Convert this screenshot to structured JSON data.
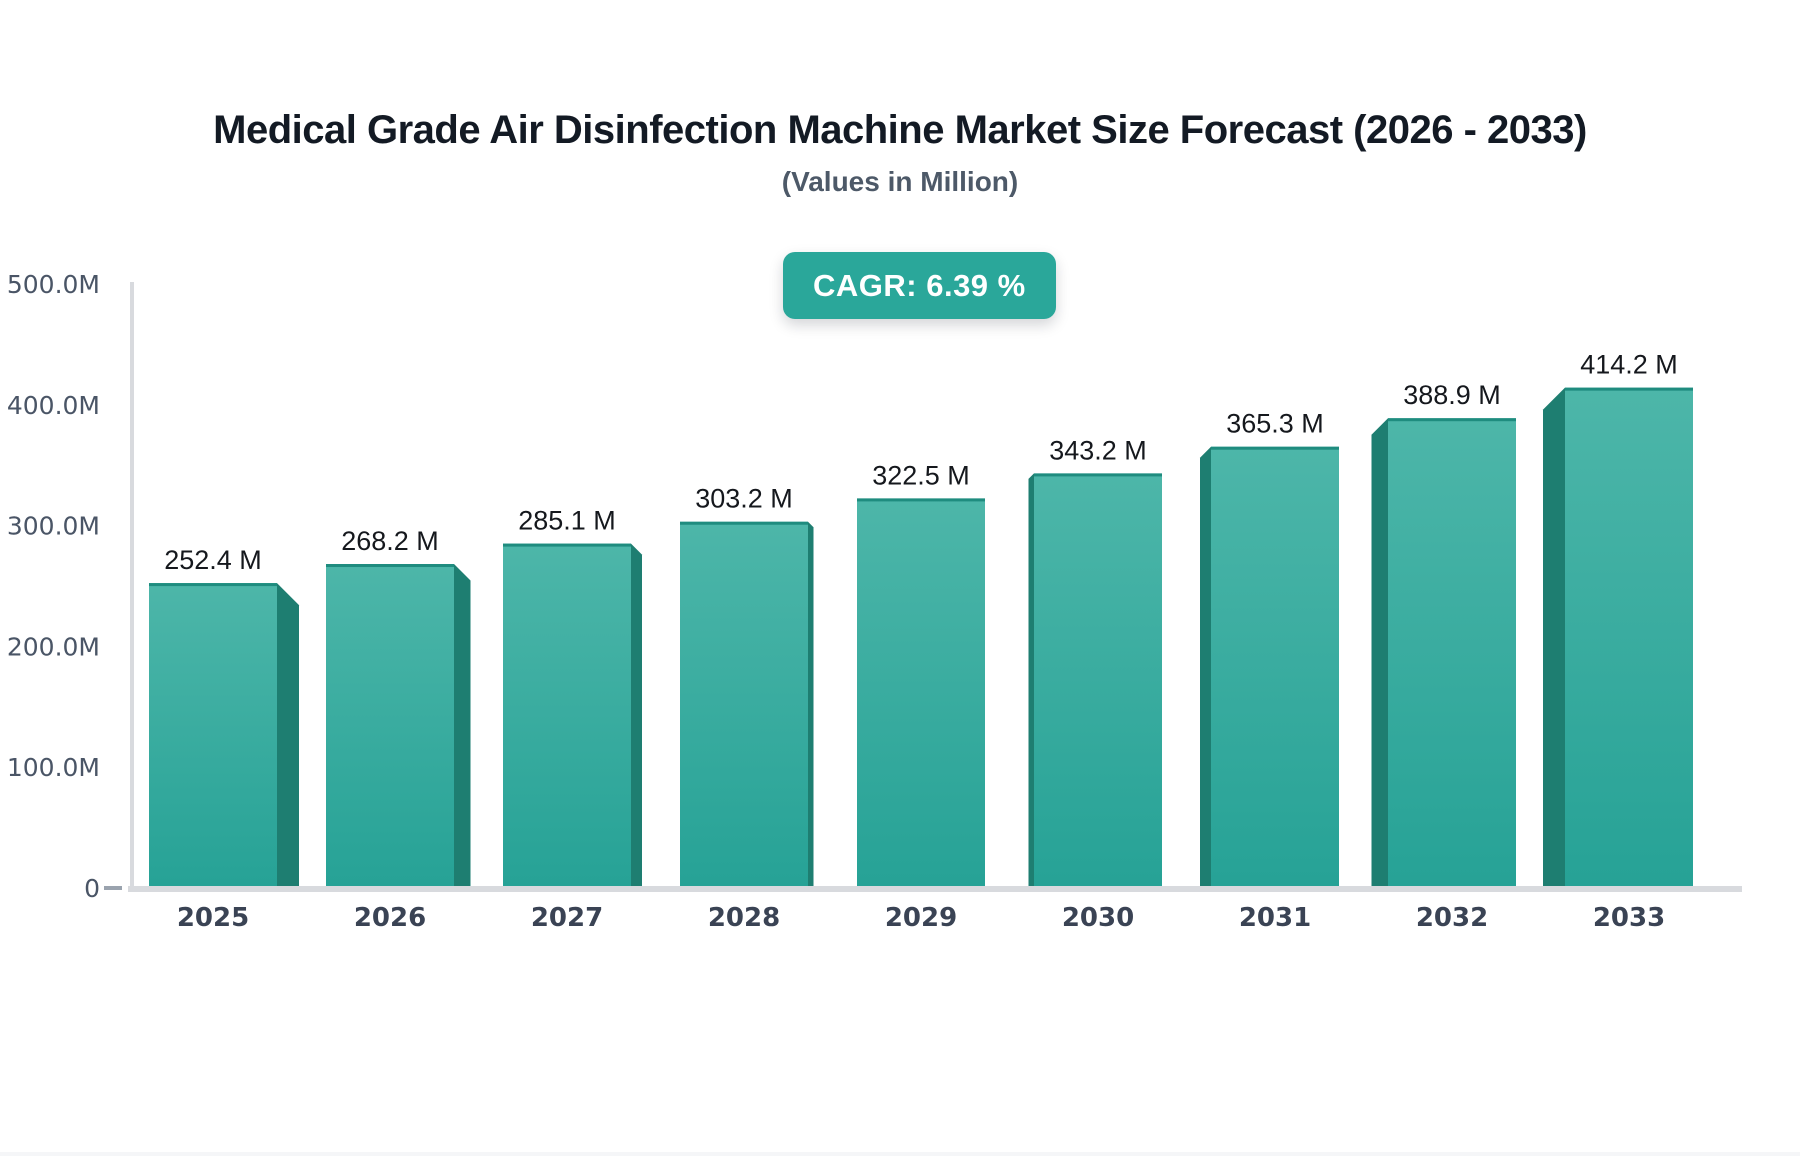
{
  "header": {
    "title": "Medical Grade Air Disinfection Machine Market Size Forecast (2026 - 2033)",
    "subtitle": "(Values in Million)",
    "cagr_badge": "CAGR: 6.39 %"
  },
  "chart_data": {
    "type": "bar",
    "title": "Medical Grade Air Disinfection Machine Market Size Forecast (2026 - 2033)",
    "subtitle": "(Values in Million)",
    "cagr": "6.39 %",
    "unit": "Million",
    "categories": [
      "2025",
      "2026",
      "2027",
      "2028",
      "2029",
      "2030",
      "2031",
      "2032",
      "2033"
    ],
    "values": [
      252.4,
      268.2,
      285.1,
      303.2,
      322.5,
      343.2,
      365.3,
      388.9,
      414.2
    ],
    "bar_labels": [
      "252.4 M",
      "268.2 M",
      "285.1 M",
      "303.2 M",
      "322.5 M",
      "343.2 M",
      "365.3 M",
      "388.9 M",
      "414.2 M"
    ],
    "yticks": [
      500,
      400,
      300,
      200,
      100,
      0
    ],
    "ytick_labels": [
      "500.0M",
      "400.0M",
      "300.0M",
      "200.0M",
      "100.0M",
      "0"
    ],
    "ylim": [
      0,
      500
    ],
    "xlabel": "",
    "ylabel": "",
    "grid": false,
    "legend_position": "none",
    "colors": {
      "bar_top": "#4db6a9",
      "bar_bottom": "#26a296",
      "bar_side": "#1e7e71",
      "bar_top_edge": "#1f8c7f",
      "badge_bg": "#2aa79a",
      "axis_line": "#d8dade",
      "zero_tick": "#9aa3ae",
      "tick_text": "#4a5566",
      "category_text": "#3a4354",
      "value_text": "#15181d"
    }
  }
}
